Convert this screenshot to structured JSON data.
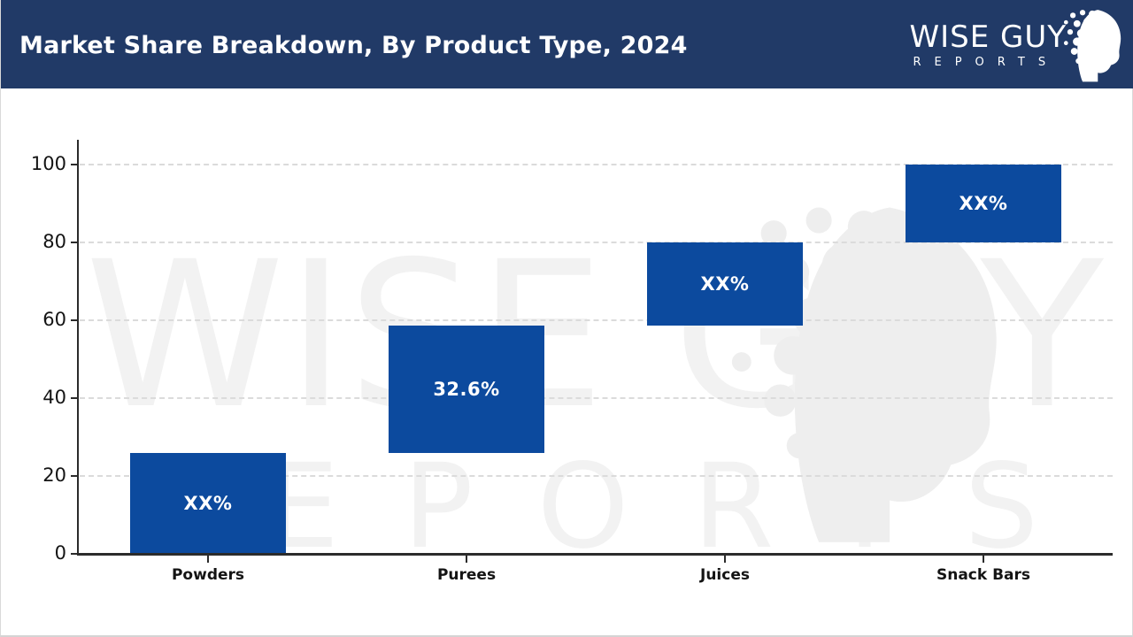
{
  "header": {
    "title": "Market Share Breakdown, By Product Type, 2024",
    "logo": {
      "line1": "WISE GUY",
      "line2": "REPORTS"
    }
  },
  "watermark": {
    "line1": "WISE GUY",
    "line2": "REPORTS"
  },
  "colors": {
    "header_bg": "#213A67",
    "bar": "#0C4A9E",
    "bar_label": "#FFFFFF",
    "gridline": "#DBDBDB",
    "axis": "#2B2B2B",
    "watermark": "#F2F2F2"
  },
  "chart_data": {
    "type": "bar",
    "subtype": "waterfall-floating-bars",
    "title": "Market Share Breakdown, By Product Type, 2024",
    "categories": [
      "Powders",
      "Purees",
      "Juices",
      "Snack Bars"
    ],
    "segments": [
      {
        "category": "Powders",
        "start": 0,
        "end": 26,
        "label": "XX%"
      },
      {
        "category": "Purees",
        "start": 26,
        "end": 58.6,
        "label": "32.6%"
      },
      {
        "category": "Juices",
        "start": 58.6,
        "end": 80,
        "label": "XX%"
      },
      {
        "category": "Snack Bars",
        "start": 80,
        "end": 100,
        "label": "XX%"
      }
    ],
    "xlabel": "",
    "ylabel": "",
    "ylim": [
      0,
      100
    ],
    "yticks": [
      0,
      20,
      40,
      60,
      80,
      100
    ],
    "grid": "horizontal-dashed",
    "legend": null
  }
}
